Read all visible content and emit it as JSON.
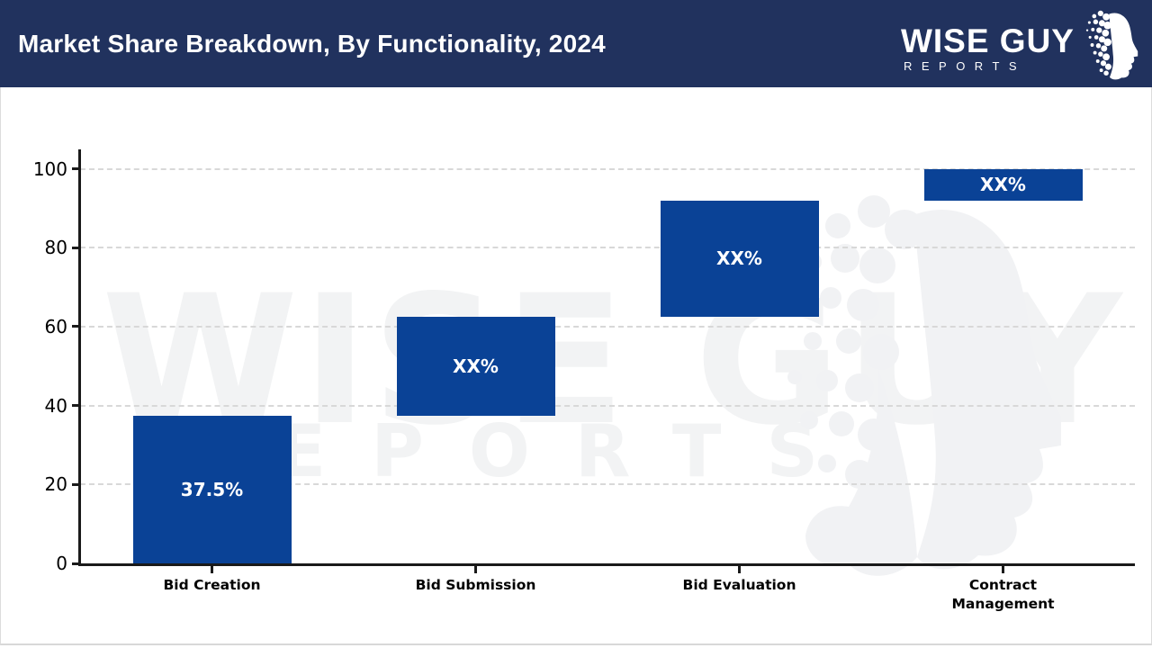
{
  "header": {
    "title": "Market Share Breakdown, By Functionality, 2024",
    "background_color": "#21325e",
    "logo": {
      "name": "WISE GUY REPORTS",
      "line1": "WISE GUY",
      "line2": "REPORTS"
    }
  },
  "watermark": {
    "line1": "WISE GUY",
    "line2": "REPORTS"
  },
  "chart_data": {
    "type": "bar",
    "subtype": "floating-segment-waterfall",
    "title": "Market Share Breakdown, By Functionality, 2024",
    "categories": [
      "Bid Creation",
      "Bid Submission",
      "Bid Evaluation",
      "Contract Management"
    ],
    "segments": [
      {
        "category": "Bid Creation",
        "start": 0,
        "end": 37.5,
        "label": "37.5%"
      },
      {
        "category": "Bid Submission",
        "start": 37.5,
        "end": 62.5,
        "label": "XX%"
      },
      {
        "category": "Bid Evaluation",
        "start": 62.5,
        "end": 92,
        "label": "XX%"
      },
      {
        "category": "Contract Management",
        "start": 92,
        "end": 100,
        "label": "XX%"
      }
    ],
    "ylim": [
      0,
      100
    ],
    "yticks": [
      0,
      20,
      40,
      60,
      80,
      100
    ],
    "grid": {
      "orientation": "horizontal",
      "style": "dashed",
      "color": "#d8d8d8"
    },
    "bar_color": "#0a4296",
    "bar_label_color": "#ffffff",
    "axis_color": "#1a1a1a",
    "legend": "none",
    "xlabel": "",
    "ylabel": ""
  }
}
